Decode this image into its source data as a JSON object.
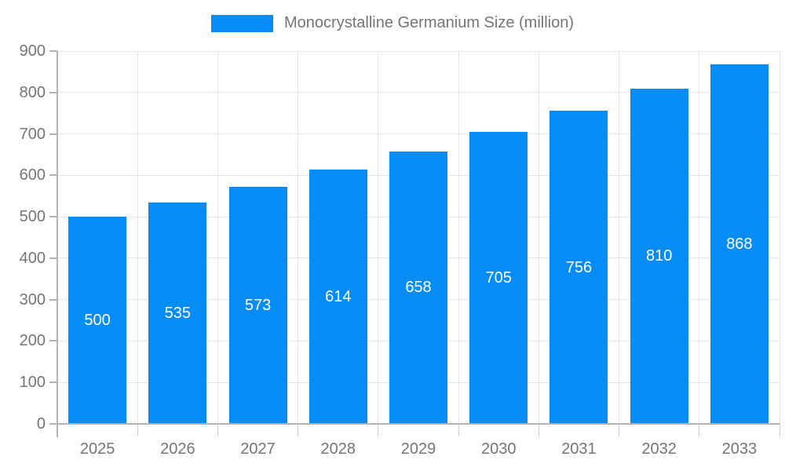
{
  "chart_data": {
    "type": "bar",
    "legend": "Monocrystalline Germanium Size (million)",
    "categories": [
      "2025",
      "2026",
      "2027",
      "2028",
      "2029",
      "2030",
      "2031",
      "2032",
      "2033"
    ],
    "values": [
      500,
      535,
      573,
      614,
      658,
      705,
      756,
      810,
      868
    ],
    "xlabel": "",
    "ylabel": "",
    "ylim": [
      0,
      900
    ],
    "ytick_step": 100,
    "grid": true,
    "legend_position": "top",
    "colors": {
      "bar": "#058df5",
      "bar_value_label": "#ffffff",
      "axis_text": "#757575",
      "grid_line": "#e6e6e6",
      "axis_line": "#b3b3b3",
      "x_tick": "#cccccc"
    }
  }
}
